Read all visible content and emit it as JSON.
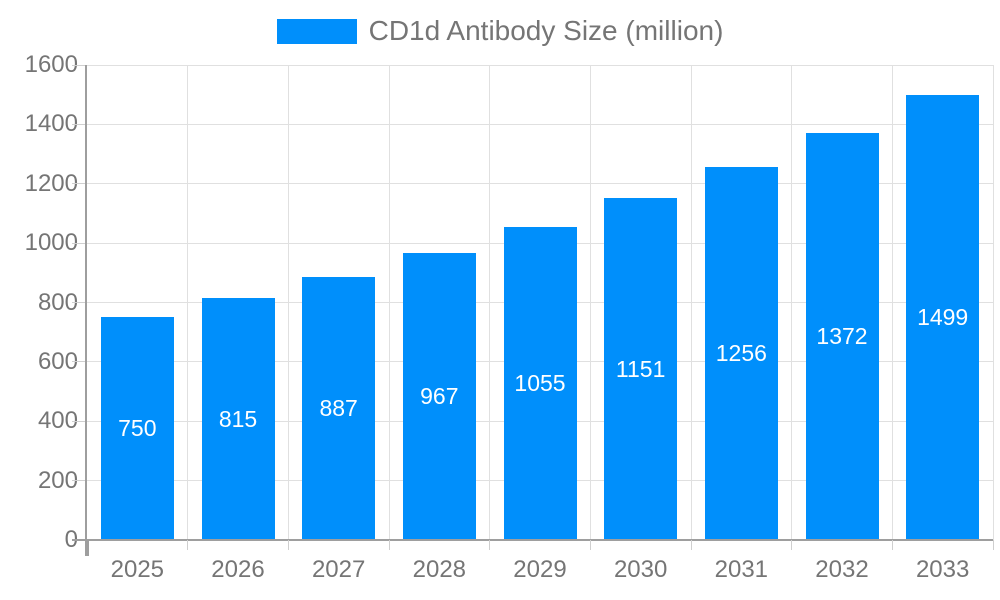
{
  "chart_data": {
    "type": "bar",
    "title": "CD1d Antibody Size (million)",
    "categories": [
      "2025",
      "2026",
      "2027",
      "2028",
      "2029",
      "2030",
      "2031",
      "2032",
      "2033"
    ],
    "series": [
      {
        "name": "CD1d Antibody Size (million)",
        "values": [
          750,
          815,
          887,
          967,
          1055,
          1151,
          1256,
          1372,
          1499
        ]
      }
    ],
    "xlabel": "",
    "ylabel": "",
    "ylim": [
      0,
      1600
    ],
    "ytick_step": 200,
    "yticks": [
      0,
      200,
      400,
      600,
      800,
      1000,
      1200,
      1400,
      1600
    ],
    "grid": true,
    "legend_position": "top-center",
    "value_label_position": "inside-center",
    "colors": {
      "bar": "#008FFB",
      "grid": "#e0e0e0",
      "axis": "#9e9e9e",
      "tick": "#cfcfcf",
      "axis_label": "#757575",
      "value_label": "#ffffff",
      "background": "#ffffff"
    }
  }
}
